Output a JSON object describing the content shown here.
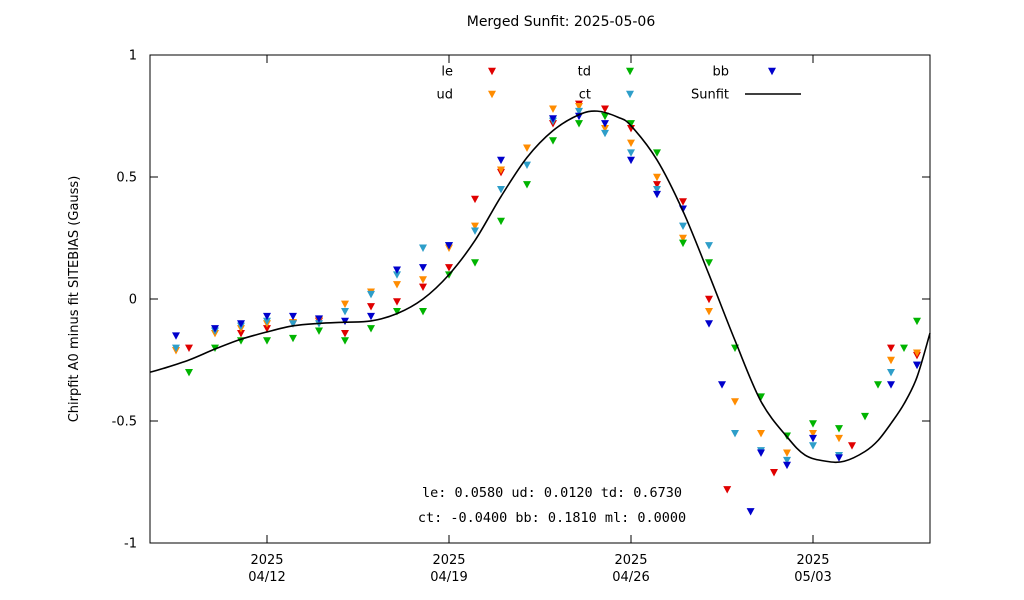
{
  "title": "Merged Sunfit: 2025-05-06",
  "chart_data": {
    "type": "scatter",
    "title": "Merged Sunfit: 2025-05-06",
    "xlabel": "",
    "ylabel": "Chirpfit A0 minus fit SITEBIAS (Gauss)",
    "ylim": [
      -1,
      1
    ],
    "x_units": "days relative to 2025-04-12",
    "xlim_days": [
      -4.5,
      25.5
    ],
    "grid": false,
    "y_axis": {
      "label": "Chirpfit A0 minus fit SITEBIAS (Gauss)",
      "ticks": [
        {
          "value": -1,
          "label": "-1"
        },
        {
          "value": -0.5,
          "label": "-0.5"
        },
        {
          "value": 0,
          "label": "0"
        },
        {
          "value": 0.5,
          "label": "0.5"
        },
        {
          "value": 1,
          "label": "1"
        }
      ]
    },
    "x_axis": {
      "ticks": [
        {
          "day": 0,
          "year": "2025",
          "date": "04/12"
        },
        {
          "day": 7,
          "year": "2025",
          "date": "04/19"
        },
        {
          "day": 14,
          "year": "2025",
          "date": "04/26"
        },
        {
          "day": 21,
          "year": "2025",
          "date": "05/03"
        }
      ]
    },
    "legend": {
      "position": "top-center",
      "entries": [
        {
          "name": "le",
          "color": "#e00000",
          "marker": "triangle-down"
        },
        {
          "name": "td",
          "color": "#00b400",
          "marker": "triangle-down"
        },
        {
          "name": "bb",
          "color": "#0000cc",
          "marker": "triangle-down"
        },
        {
          "name": "ud",
          "color": "#ff8c00",
          "marker": "triangle-down"
        },
        {
          "name": "ct",
          "color": "#2e9ec9",
          "marker": "triangle-down"
        },
        {
          "name": "Sunfit",
          "color": "#000000",
          "marker": "line"
        }
      ]
    },
    "series": [
      {
        "name": "le",
        "color": "#e00000",
        "marker": "triangle-down",
        "points": [
          [
            -3,
            -0.2
          ],
          [
            -1,
            -0.14
          ],
          [
            0,
            -0.12
          ],
          [
            1,
            -0.1
          ],
          [
            2,
            -0.09
          ],
          [
            3,
            -0.14
          ],
          [
            4,
            -0.03
          ],
          [
            5,
            -0.01
          ],
          [
            6,
            0.05
          ],
          [
            7,
            0.13
          ],
          [
            8,
            0.41
          ],
          [
            9,
            0.52
          ],
          [
            11,
            0.72
          ],
          [
            12,
            0.8
          ],
          [
            13,
            0.78
          ],
          [
            14,
            0.7
          ],
          [
            15,
            0.47
          ],
          [
            16,
            0.4
          ],
          [
            17,
            0.0
          ],
          [
            17.7,
            -0.78
          ],
          [
            19.5,
            -0.71
          ],
          [
            22.5,
            -0.6
          ],
          [
            24,
            -0.2
          ],
          [
            25,
            -0.23
          ]
        ]
      },
      {
        "name": "ud",
        "color": "#ff8c00",
        "marker": "triangle-down",
        "points": [
          [
            -3.5,
            -0.21
          ],
          [
            -2,
            -0.14
          ],
          [
            -1,
            -0.12
          ],
          [
            0,
            -0.1
          ],
          [
            1,
            -0.095
          ],
          [
            2,
            -0.085
          ],
          [
            3,
            -0.02
          ],
          [
            4,
            0.03
          ],
          [
            5,
            0.06
          ],
          [
            6,
            0.08
          ],
          [
            7,
            0.21
          ],
          [
            8,
            0.3
          ],
          [
            9,
            0.53
          ],
          [
            10,
            0.62
          ],
          [
            11,
            0.78
          ],
          [
            12,
            0.79
          ],
          [
            13,
            0.7
          ],
          [
            14,
            0.64
          ],
          [
            15,
            0.5
          ],
          [
            16,
            0.25
          ],
          [
            17,
            -0.05
          ],
          [
            18,
            -0.42
          ],
          [
            19,
            -0.55
          ],
          [
            20,
            -0.63
          ],
          [
            21,
            -0.55
          ],
          [
            22,
            -0.57
          ],
          [
            24,
            -0.25
          ],
          [
            25,
            -0.22
          ]
        ]
      },
      {
        "name": "td",
        "color": "#00b400",
        "marker": "triangle-down",
        "points": [
          [
            -3,
            -0.3
          ],
          [
            -2,
            -0.2
          ],
          [
            -1,
            -0.17
          ],
          [
            0,
            -0.17
          ],
          [
            1,
            -0.16
          ],
          [
            2,
            -0.13
          ],
          [
            3,
            -0.17
          ],
          [
            4,
            -0.12
          ],
          [
            5,
            -0.05
          ],
          [
            6,
            -0.05
          ],
          [
            7,
            0.1
          ],
          [
            8,
            0.15
          ],
          [
            9,
            0.32
          ],
          [
            10,
            0.47
          ],
          [
            11,
            0.65
          ],
          [
            12,
            0.72
          ],
          [
            13,
            0.75
          ],
          [
            14,
            0.72
          ],
          [
            15,
            0.6
          ],
          [
            16,
            0.23
          ],
          [
            17,
            0.15
          ],
          [
            18,
            -0.2
          ],
          [
            19,
            -0.4
          ],
          [
            20,
            -0.56
          ],
          [
            21,
            -0.51
          ],
          [
            22,
            -0.53
          ],
          [
            23,
            -0.48
          ],
          [
            23.5,
            -0.35
          ],
          [
            24.5,
            -0.2
          ],
          [
            25,
            -0.09
          ]
        ]
      },
      {
        "name": "ct",
        "color": "#2e9ec9",
        "marker": "triangle-down",
        "points": [
          [
            -3.5,
            -0.2
          ],
          [
            -2,
            -0.13
          ],
          [
            -1,
            -0.11
          ],
          [
            0,
            -0.09
          ],
          [
            1,
            -0.1
          ],
          [
            2,
            -0.1
          ],
          [
            3,
            -0.05
          ],
          [
            4,
            0.02
          ],
          [
            5,
            0.1
          ],
          [
            6,
            0.21
          ],
          [
            7,
            0.22
          ],
          [
            8,
            0.28
          ],
          [
            9,
            0.45
          ],
          [
            10,
            0.55
          ],
          [
            11,
            0.73
          ],
          [
            12,
            0.77
          ],
          [
            13,
            0.68
          ],
          [
            14,
            0.6
          ],
          [
            15,
            0.45
          ],
          [
            16,
            0.3
          ],
          [
            17,
            0.22
          ],
          [
            18,
            -0.55
          ],
          [
            19,
            -0.62
          ],
          [
            20,
            -0.66
          ],
          [
            21,
            -0.6
          ],
          [
            22,
            -0.64
          ],
          [
            24,
            -0.3
          ],
          [
            25,
            -0.27
          ]
        ]
      },
      {
        "name": "bb",
        "color": "#0000cc",
        "marker": "triangle-down",
        "points": [
          [
            -3.5,
            -0.15
          ],
          [
            -2,
            -0.12
          ],
          [
            -1,
            -0.1
          ],
          [
            0,
            -0.07
          ],
          [
            1,
            -0.07
          ],
          [
            2,
            -0.08
          ],
          [
            3,
            -0.09
          ],
          [
            4,
            -0.07
          ],
          [
            5,
            0.12
          ],
          [
            6,
            0.13
          ],
          [
            7,
            0.22
          ],
          [
            9,
            0.57
          ],
          [
            11,
            0.74
          ],
          [
            12,
            0.75
          ],
          [
            13,
            0.72
          ],
          [
            14,
            0.57
          ],
          [
            15,
            0.43
          ],
          [
            16,
            0.37
          ],
          [
            17,
            -0.1
          ],
          [
            17.5,
            -0.35
          ],
          [
            18.6,
            -0.87
          ],
          [
            19,
            -0.63
          ],
          [
            20,
            -0.68
          ],
          [
            21,
            -0.57
          ],
          [
            22,
            -0.65
          ],
          [
            24,
            -0.35
          ],
          [
            25,
            -0.27
          ]
        ]
      }
    ],
    "sunfit_curve": {
      "name": "Sunfit",
      "color": "#000000",
      "points": [
        [
          -4.5,
          -0.3
        ],
        [
          -4,
          -0.285
        ],
        [
          -3,
          -0.25
        ],
        [
          -2,
          -0.205
        ],
        [
          -1,
          -0.165
        ],
        [
          0,
          -0.135
        ],
        [
          1,
          -0.11
        ],
        [
          2,
          -0.1
        ],
        [
          3,
          -0.095
        ],
        [
          4,
          -0.09
        ],
        [
          5,
          -0.06
        ],
        [
          6,
          0.0
        ],
        [
          7,
          0.1
        ],
        [
          8,
          0.24
        ],
        [
          9,
          0.42
        ],
        [
          10,
          0.58
        ],
        [
          11,
          0.69
        ],
        [
          12,
          0.755
        ],
        [
          12.7,
          0.77
        ],
        [
          13.5,
          0.745
        ],
        [
          14,
          0.71
        ],
        [
          15,
          0.57
        ],
        [
          16,
          0.36
        ],
        [
          17,
          0.1
        ],
        [
          18,
          -0.17
        ],
        [
          19,
          -0.42
        ],
        [
          20,
          -0.565
        ],
        [
          20.7,
          -0.64
        ],
        [
          21.5,
          -0.665
        ],
        [
          22.2,
          -0.665
        ],
        [
          23,
          -0.625
        ],
        [
          23.5,
          -0.58
        ],
        [
          24,
          -0.51
        ],
        [
          24.5,
          -0.43
        ],
        [
          25,
          -0.32
        ],
        [
          25.5,
          -0.14
        ]
      ]
    },
    "annotation": {
      "lines": [
        "le:  0.0580   ud:  0.0120   td:  0.6730",
        "ct: -0.0400   bb:  0.1810   ml:  0.0000"
      ],
      "params": {
        "le": 0.058,
        "ud": 0.012,
        "td": 0.673,
        "ct": -0.04,
        "bb": 0.181,
        "ml": 0.0
      }
    }
  }
}
